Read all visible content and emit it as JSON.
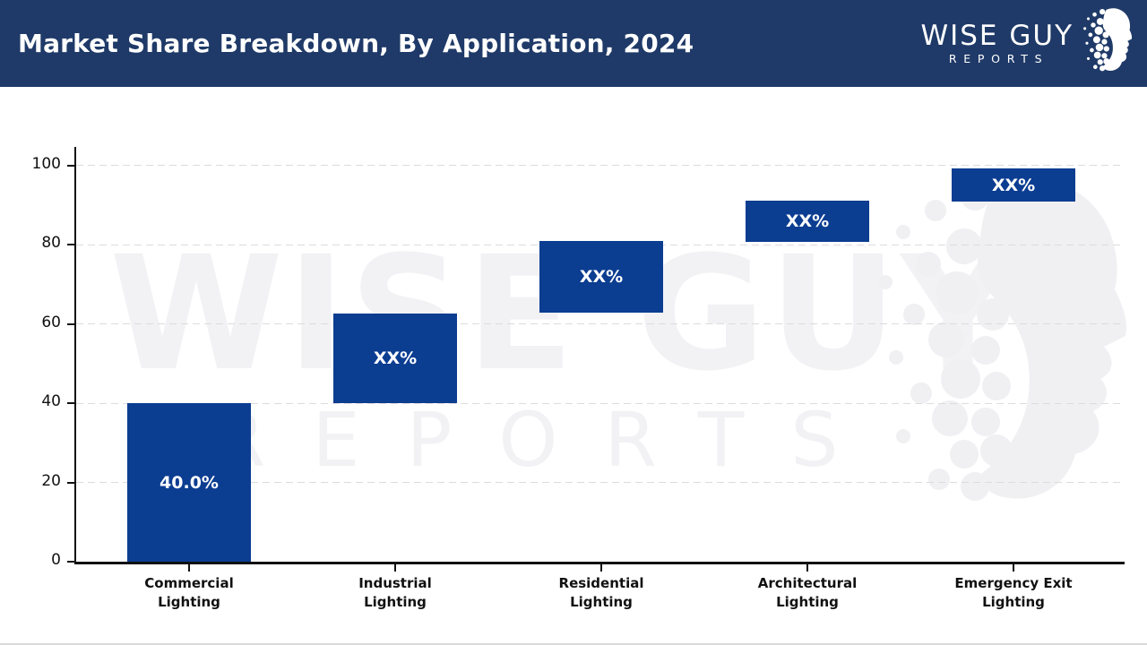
{
  "header": {
    "title": "Market Share Breakdown, By Application, 2024",
    "bg_color": "#1f3a68",
    "logo": {
      "line1": "WISE GUY",
      "line2": "REPORTS"
    }
  },
  "watermark": {
    "line1": "WISE GUY",
    "line2": "REPORTS",
    "color": "#f2f2f5"
  },
  "chart_data": {
    "type": "bar",
    "subtype": "waterfall",
    "title": "Market Share Breakdown, By Application, 2024",
    "categories": [
      "Commercial Lighting",
      "Industrial Lighting",
      "Residential Lighting",
      "Architectural Lighting",
      "Emergency Exit Lighting"
    ],
    "category_label_lines": [
      [
        "Commercial",
        "Lighting"
      ],
      [
        "Industrial",
        "Lighting"
      ],
      [
        "Residential",
        "Lighting"
      ],
      [
        "Architectural",
        "Lighting"
      ],
      [
        "Emergency Exit",
        "Lighting"
      ]
    ],
    "segments": [
      {
        "category": "Commercial Lighting",
        "start": 0,
        "end": 40.0,
        "label": "40.0%"
      },
      {
        "category": "Industrial Lighting",
        "start": 40.0,
        "end": 62.6,
        "label": "XX%"
      },
      {
        "category": "Residential Lighting",
        "start": 62.8,
        "end": 80.9,
        "label": "XX%"
      },
      {
        "category": "Architectural Lighting",
        "start": 80.7,
        "end": 91.1,
        "label": "XX%"
      },
      {
        "category": "Emergency Exit Lighting",
        "start": 90.8,
        "end": 99.2,
        "label": "XX%"
      }
    ],
    "xlabel": "",
    "ylabel": "",
    "y_ticks": [
      0,
      20,
      40,
      60,
      80,
      100
    ],
    "ylim": [
      0,
      104.6
    ],
    "grid": "horizontal-dashed",
    "legend": null,
    "bar_color": "#0b3d91",
    "bar_label_color": "#ffffff",
    "axis_color": "#111111",
    "grid_color": "#dcdcdc"
  }
}
